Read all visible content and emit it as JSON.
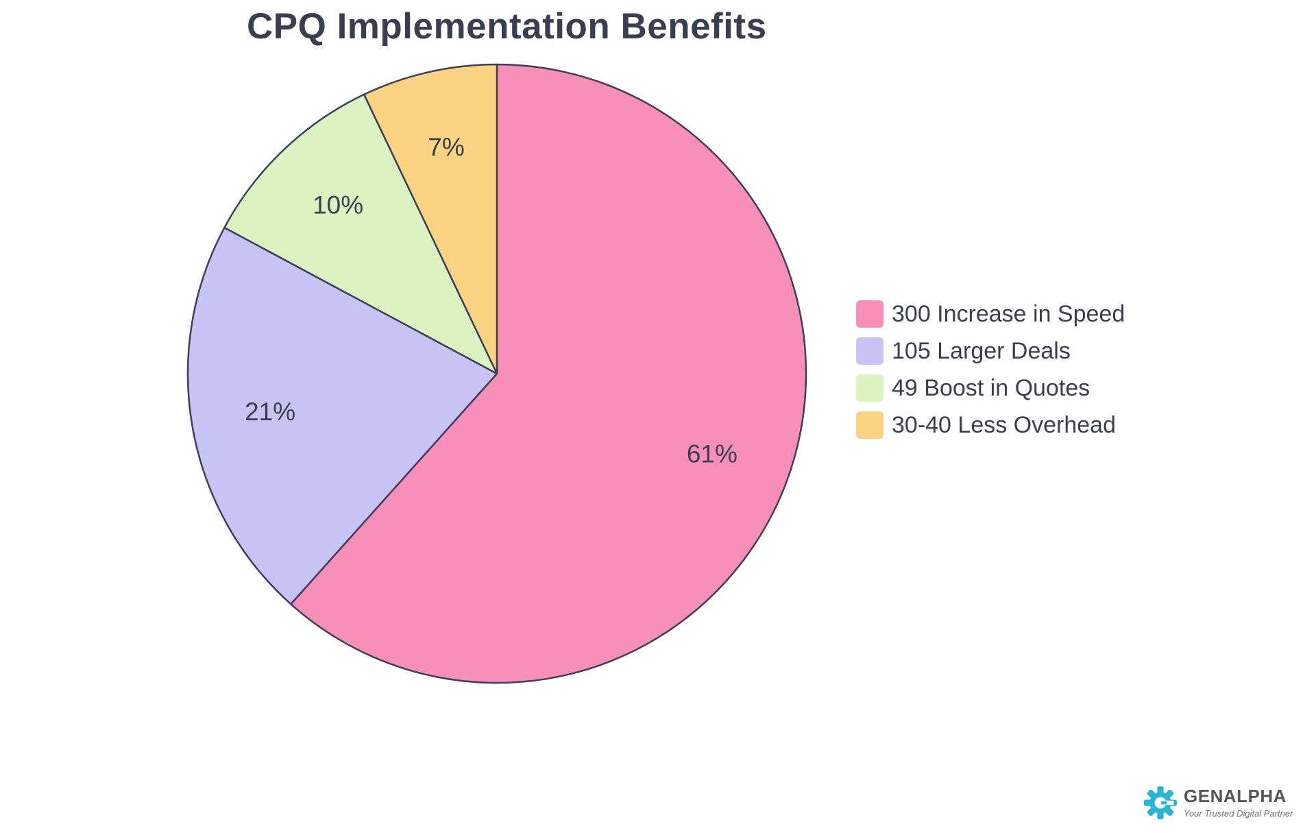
{
  "title": "CPQ Implementation Benefits",
  "background_color": "#FFFFFF",
  "chart_data": {
    "type": "pie",
    "title": "CPQ Implementation Benefits",
    "labels": [
      "300 Increase in Speed",
      "105 Larger Deals",
      "49 Boost in Quotes",
      "30-40 Less Overhead"
    ],
    "values": [
      61,
      21,
      10,
      7
    ],
    "unit": "%",
    "percent_labels": [
      "61%",
      "21%",
      "10%",
      "7%"
    ],
    "colors": [
      "#F78FB9",
      "#C7C4F5",
      "#DAF3C1",
      "#FBD382"
    ],
    "stroke_color": "#3E3E5B",
    "label_color": "#3A3F4F",
    "start_angle_deg": 0,
    "direction": "clockwise",
    "legend_position": "right",
    "grid": false
  },
  "legend": {
    "items": [
      {
        "label": "300 Increase in Speed",
        "color": "#F78FB9"
      },
      {
        "label": "105 Larger Deals",
        "color": "#C7C4F5"
      },
      {
        "label": "49 Boost in Quotes",
        "color": "#DAF3C1"
      },
      {
        "label": "30-40 Less Overhead",
        "color": "#FBD382"
      }
    ]
  },
  "logo": {
    "name": "GENALPHA",
    "tagline": "Your Trusted Digital Partner",
    "icon": "gear-icon",
    "icon_color": "#2BB3D6"
  }
}
